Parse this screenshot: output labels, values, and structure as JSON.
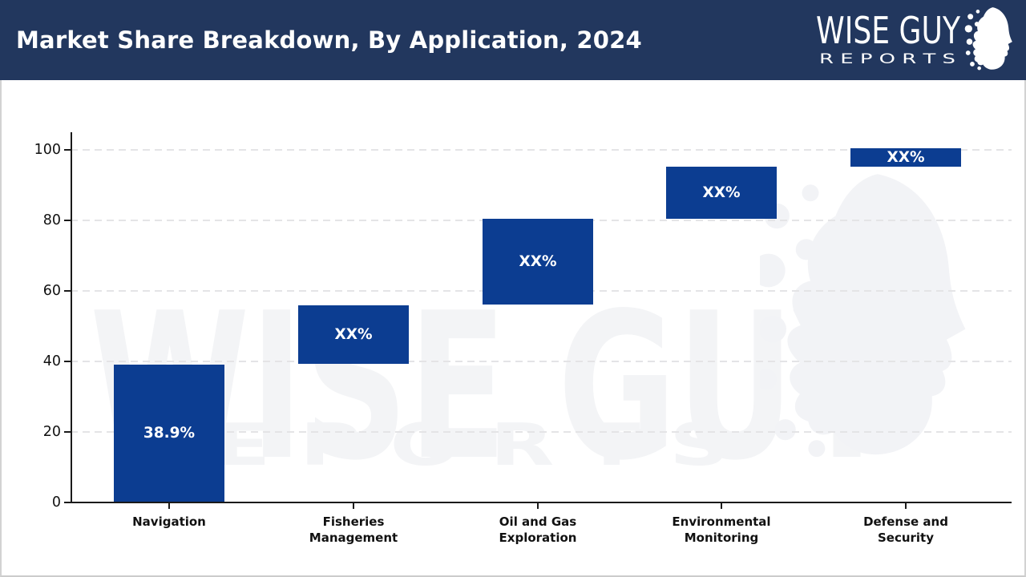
{
  "header": {
    "title": "Market Share Breakdown, By Application, 2024",
    "logo": {
      "line1": "WISE GUY",
      "line2": "R E P O R T S"
    }
  },
  "watermark": {
    "line1": "WISE GUY",
    "line2": "R E P O R T S"
  },
  "colors": {
    "header_bg": "#22375e",
    "bar_fill": "#0c3d91",
    "bar_label_text": "#ffffff",
    "gridline": "#e4e4e6",
    "axis": "#1a1a1a",
    "watermark_gray": "#f2f3f6"
  },
  "chart_data": {
    "type": "bar",
    "subtype": "waterfall",
    "title": "Market Share Breakdown, By Application, 2024",
    "xlabel": "",
    "ylabel": "",
    "categories": [
      "Navigation",
      "Fisheries\nManagement",
      "Oil and Gas\nExploration",
      "Environmental\nMonitoring",
      "Defense and\nSecurity"
    ],
    "bars": [
      {
        "category": "Navigation",
        "start": 0,
        "end": 38.9,
        "label": "38.9%"
      },
      {
        "category": "Fisheries Management",
        "start": 39.1,
        "end": 55.7,
        "label": "XX%"
      },
      {
        "category": "Oil and Gas Exploration",
        "start": 55.8,
        "end": 80.2,
        "label": "XX%"
      },
      {
        "category": "Environmental Monitoring",
        "start": 80.2,
        "end": 95.1,
        "label": "XX%"
      },
      {
        "category": "Defense and Security",
        "start": 95.1,
        "end": 100.2,
        "label": "XX%"
      }
    ],
    "yticks": [
      0,
      20,
      40,
      60,
      80,
      100
    ],
    "ylim": [
      0,
      105
    ],
    "grid": true,
    "grid_style": "dashed",
    "legend": false
  }
}
